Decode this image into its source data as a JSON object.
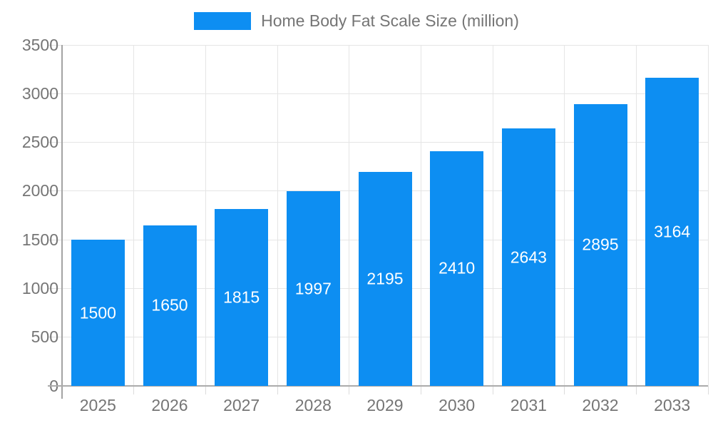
{
  "chart_data": {
    "type": "bar",
    "title": "Home Body Fat Scale Size (million)",
    "categories": [
      "2025",
      "2026",
      "2027",
      "2028",
      "2029",
      "2030",
      "2031",
      "2032",
      "2033"
    ],
    "values": [
      1500,
      1650,
      1815,
      1997,
      2195,
      2410,
      2643,
      2895,
      3164
    ],
    "xlabel": "",
    "ylabel": "",
    "ylim": [
      0,
      3500
    ],
    "ytick_step": 500,
    "yticks": [
      0,
      500,
      1000,
      1500,
      2000,
      2500,
      3000,
      3500
    ],
    "grid": true,
    "legend_position": "top-center",
    "value_labels": "inside-center-white"
  },
  "legend": {
    "label": "Home Body Fat Scale Size (million)"
  },
  "colors": {
    "bar": "#0d8ef2",
    "grid": "#e5e5e5",
    "axis": "#a3a3a3",
    "text": "#757575",
    "value_label": "#ffffff",
    "background": "#ffffff"
  }
}
